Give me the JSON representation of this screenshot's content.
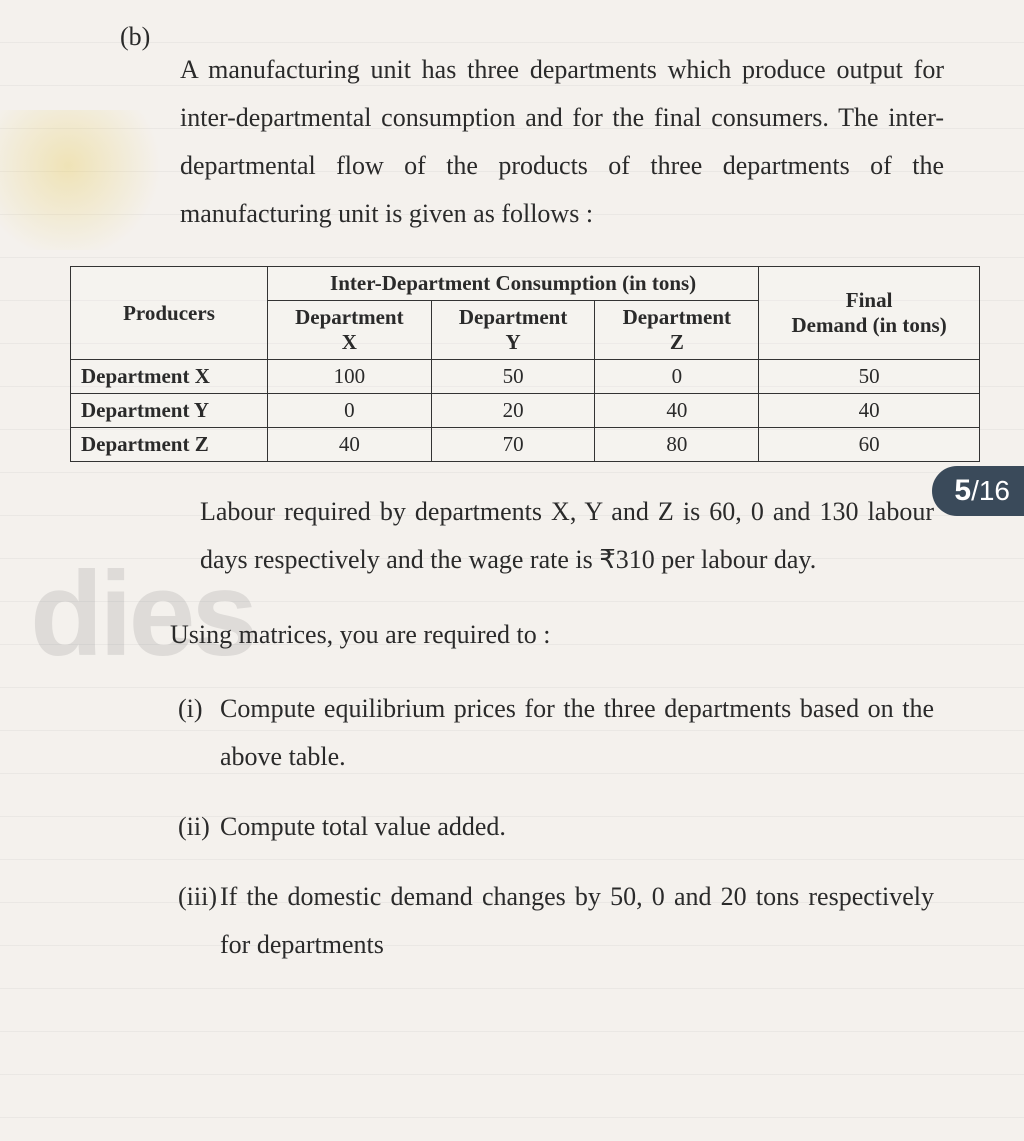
{
  "question": {
    "label": "(b)",
    "intro": "A manufacturing unit has three departments which produce output for inter-departmental consumption and for the final consumers. The inter-departmental flow of the products of three departments of the manufacturing unit is given as follows :"
  },
  "table": {
    "header_producers": "Producers",
    "header_group": "Inter-Department Consumption (in tons)",
    "header_final_top": "Final",
    "header_final_bottom": "Demand (in tons)",
    "cols": [
      {
        "top": "Department",
        "bottom": "X"
      },
      {
        "top": "Department",
        "bottom": "Y"
      },
      {
        "top": "Department",
        "bottom": "Z"
      }
    ],
    "rows": [
      {
        "name": "Department X",
        "v": [
          "100",
          "50",
          "0",
          "50"
        ]
      },
      {
        "name": "Department Y",
        "v": [
          "0",
          "20",
          "40",
          "40"
        ]
      },
      {
        "name": "Department Z",
        "v": [
          "40",
          "70",
          "80",
          "60"
        ]
      }
    ]
  },
  "labour_text": "Labour required by departments X, Y and Z is 60, 0 and 130 labour days respectively and the wage rate is ₹310 per labour day.",
  "require_text": "Using matrices, you are required to :",
  "sub": [
    {
      "label": "(i)",
      "text": "Compute equilibrium prices for the three departments based on the above table."
    },
    {
      "label": "(ii)",
      "text": "Compute total value added."
    },
    {
      "label": "(iii)",
      "text": "If the domestic demand changes by 50, 0 and 20 tons respectively for departments"
    }
  ],
  "page_indicator": {
    "current": "5",
    "total": "/16"
  },
  "watermark": "dies",
  "style": {
    "background_color": "#f4f1ed",
    "text_color": "#2a2a2a",
    "body_fontsize": 26,
    "table_fontsize": 21,
    "border_color": "#333",
    "badge_bg": "#3a4a5a",
    "badge_fg": "#ffffff",
    "watermark_color": "rgba(120,120,120,0.18)"
  }
}
